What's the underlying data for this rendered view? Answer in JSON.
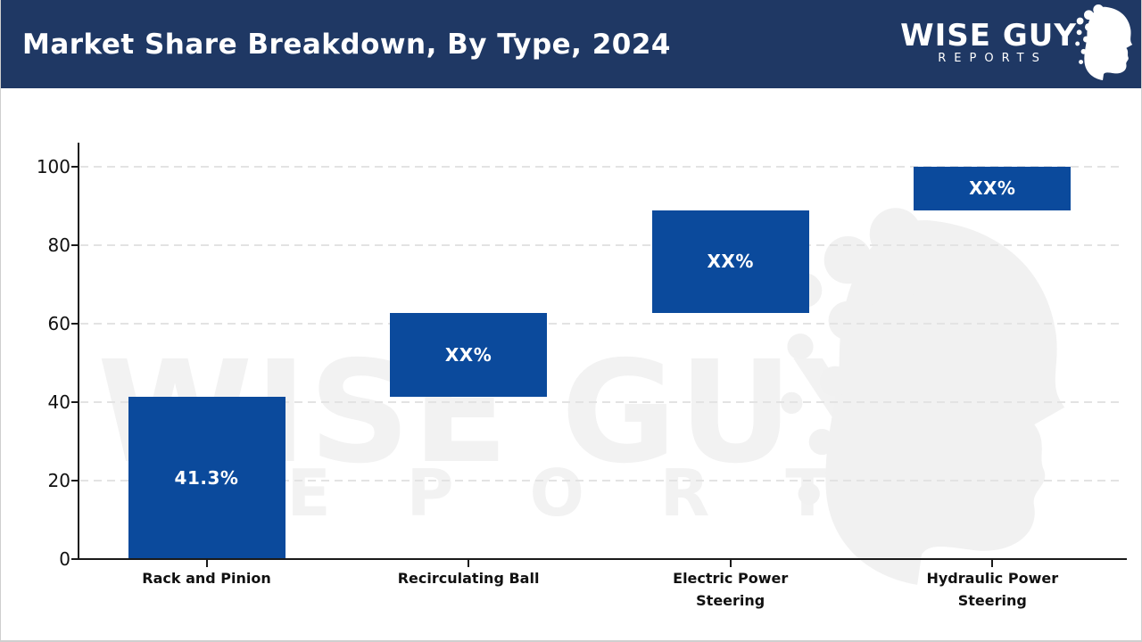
{
  "header": {
    "title": "Market Share Breakdown, By Type, 2024",
    "bg_color": "#1F3864",
    "text_color": "#FFFFFF"
  },
  "brand": {
    "name": "WISE GUY",
    "sub": "REPORTS"
  },
  "watermark": {
    "line1": "WISE GUY",
    "line2": "R E P O R T S"
  },
  "chart_data": {
    "type": "bar",
    "subtype": "waterfall",
    "title": "Market Share Breakdown, By Type, 2024",
    "categories": [
      "Rack and Pinion",
      "Recirculating Ball",
      "Electric Power\nSteering",
      "Hydraulic Power\nSteering"
    ],
    "segments": [
      {
        "category": "Rack and Pinion",
        "start": 0,
        "end": 41.3,
        "value": 41.3,
        "label": "41.3%"
      },
      {
        "category": "Recirculating Ball",
        "start": 41.3,
        "end": 62.7,
        "value": 21.4,
        "label": "XX%"
      },
      {
        "category": "Electric Power Steering",
        "start": 62.7,
        "end": 88.8,
        "value": 26.1,
        "label": "XX%"
      },
      {
        "category": "Hydraulic Power Steering",
        "start": 88.8,
        "end": 100,
        "value": 11.2,
        "label": "XX%"
      }
    ],
    "yticks": [
      0,
      20,
      40,
      60,
      80,
      100
    ],
    "ylim": [
      0,
      106
    ],
    "xlabel": "",
    "ylabel": "",
    "grid": "horizontal-dashed",
    "legend": "none",
    "bar_color": "#0B4A9C",
    "bar_label_color": "#FFFFFF"
  }
}
